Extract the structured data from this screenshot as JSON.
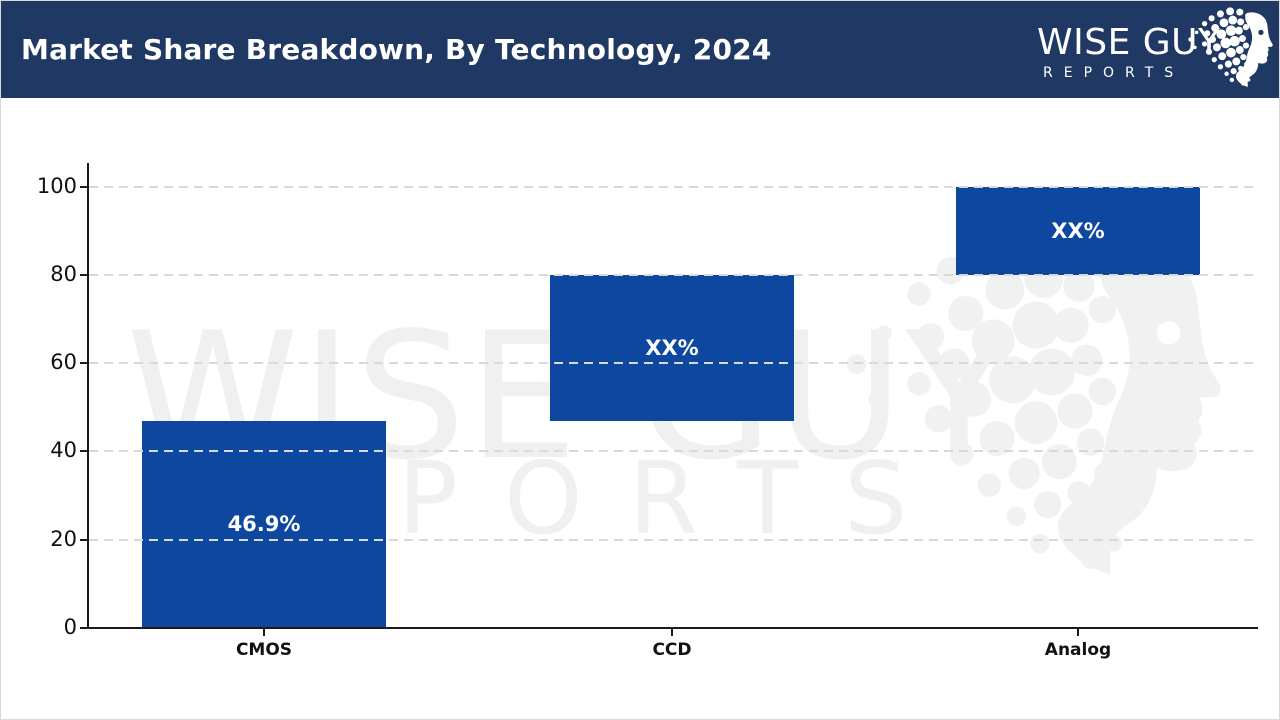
{
  "header": {
    "title": "Market Share Breakdown, By Technology, 2024",
    "logo": {
      "name": "WISE GUY",
      "tagline": "REPORTS"
    }
  },
  "watermark": {
    "name": "WISE GUY",
    "tagline": "REPORTS"
  },
  "chart_data": {
    "type": "bar",
    "subtype": "floating-segment-waterfall",
    "title": "Market Share Breakdown, By Technology, 2024",
    "categories": [
      "CMOS",
      "CCD",
      "Analog"
    ],
    "segments": [
      {
        "category": "CMOS",
        "start": 0,
        "end": 46.9,
        "label": "46.9%"
      },
      {
        "category": "CCD",
        "start": 46.9,
        "end": 80,
        "label": "XX%"
      },
      {
        "category": "Analog",
        "start": 80,
        "end": 100,
        "label": "XX%"
      }
    ],
    "yticks": [
      0,
      20,
      40,
      60,
      80,
      100
    ],
    "ylim": [
      0,
      105
    ],
    "xlabel": "",
    "ylabel": "",
    "grid": "horizontal-dashed",
    "legend": "none",
    "bar_color": "#0d47a0",
    "axis_color": "#1a1a1a",
    "gridline_color": "#d9d9d9",
    "bar_label_color": "#ffffff"
  },
  "colors": {
    "header_bg": "#1f3864",
    "background": "#ffffff",
    "watermark": "#f0f0f1"
  }
}
